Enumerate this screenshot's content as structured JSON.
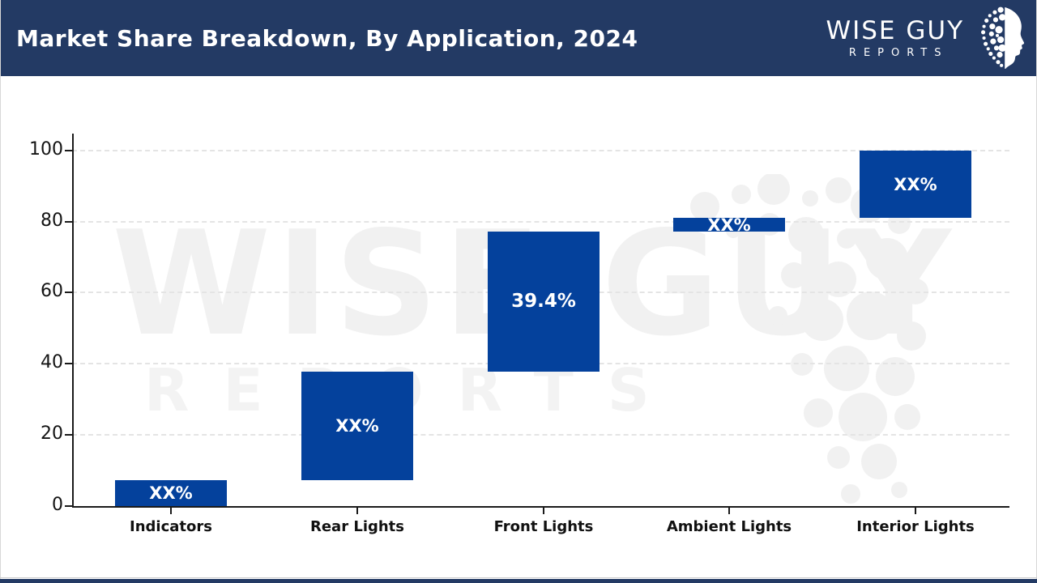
{
  "header": {
    "title": "Market Share Breakdown, By Application, 2024",
    "logo": {
      "line1": "WISE GUY",
      "line2": "REPORTS"
    }
  },
  "colors": {
    "header_bg": "#233a64",
    "bar": "#04419c",
    "bar_label": "#ffffff",
    "watermark": "#f1f1f1"
  },
  "watermark": {
    "line1": "WISE GUY",
    "line2": "REPORTS"
  },
  "chart_data": {
    "type": "bar",
    "subtype": "floating-waterfall",
    "title": "Market Share Breakdown, By Application, 2024",
    "categories": [
      "Indicators",
      "Rear Lights",
      "Front Lights",
      "Ambient Lights",
      "Interior Lights"
    ],
    "bars": [
      {
        "category": "Indicators",
        "start": 0,
        "end": 7.3,
        "label": "XX%"
      },
      {
        "category": "Rear Lights",
        "start": 7.3,
        "end": 37.8,
        "label": "XX%"
      },
      {
        "category": "Front Lights",
        "start": 37.8,
        "end": 77.2,
        "label": "39.4%"
      },
      {
        "category": "Ambient Lights",
        "start": 77.2,
        "end": 81,
        "label": "XX%"
      },
      {
        "category": "Interior Lights",
        "start": 81,
        "end": 100,
        "label": "XX%"
      }
    ],
    "yticks": [
      0,
      20,
      40,
      60,
      80,
      100
    ],
    "ylim": [
      0,
      105
    ],
    "xlabel": "",
    "ylabel": "",
    "grid": "horizontal-dashed",
    "legend": "none",
    "bar_color": "#04419c",
    "bar_label_color": "#ffffff"
  }
}
